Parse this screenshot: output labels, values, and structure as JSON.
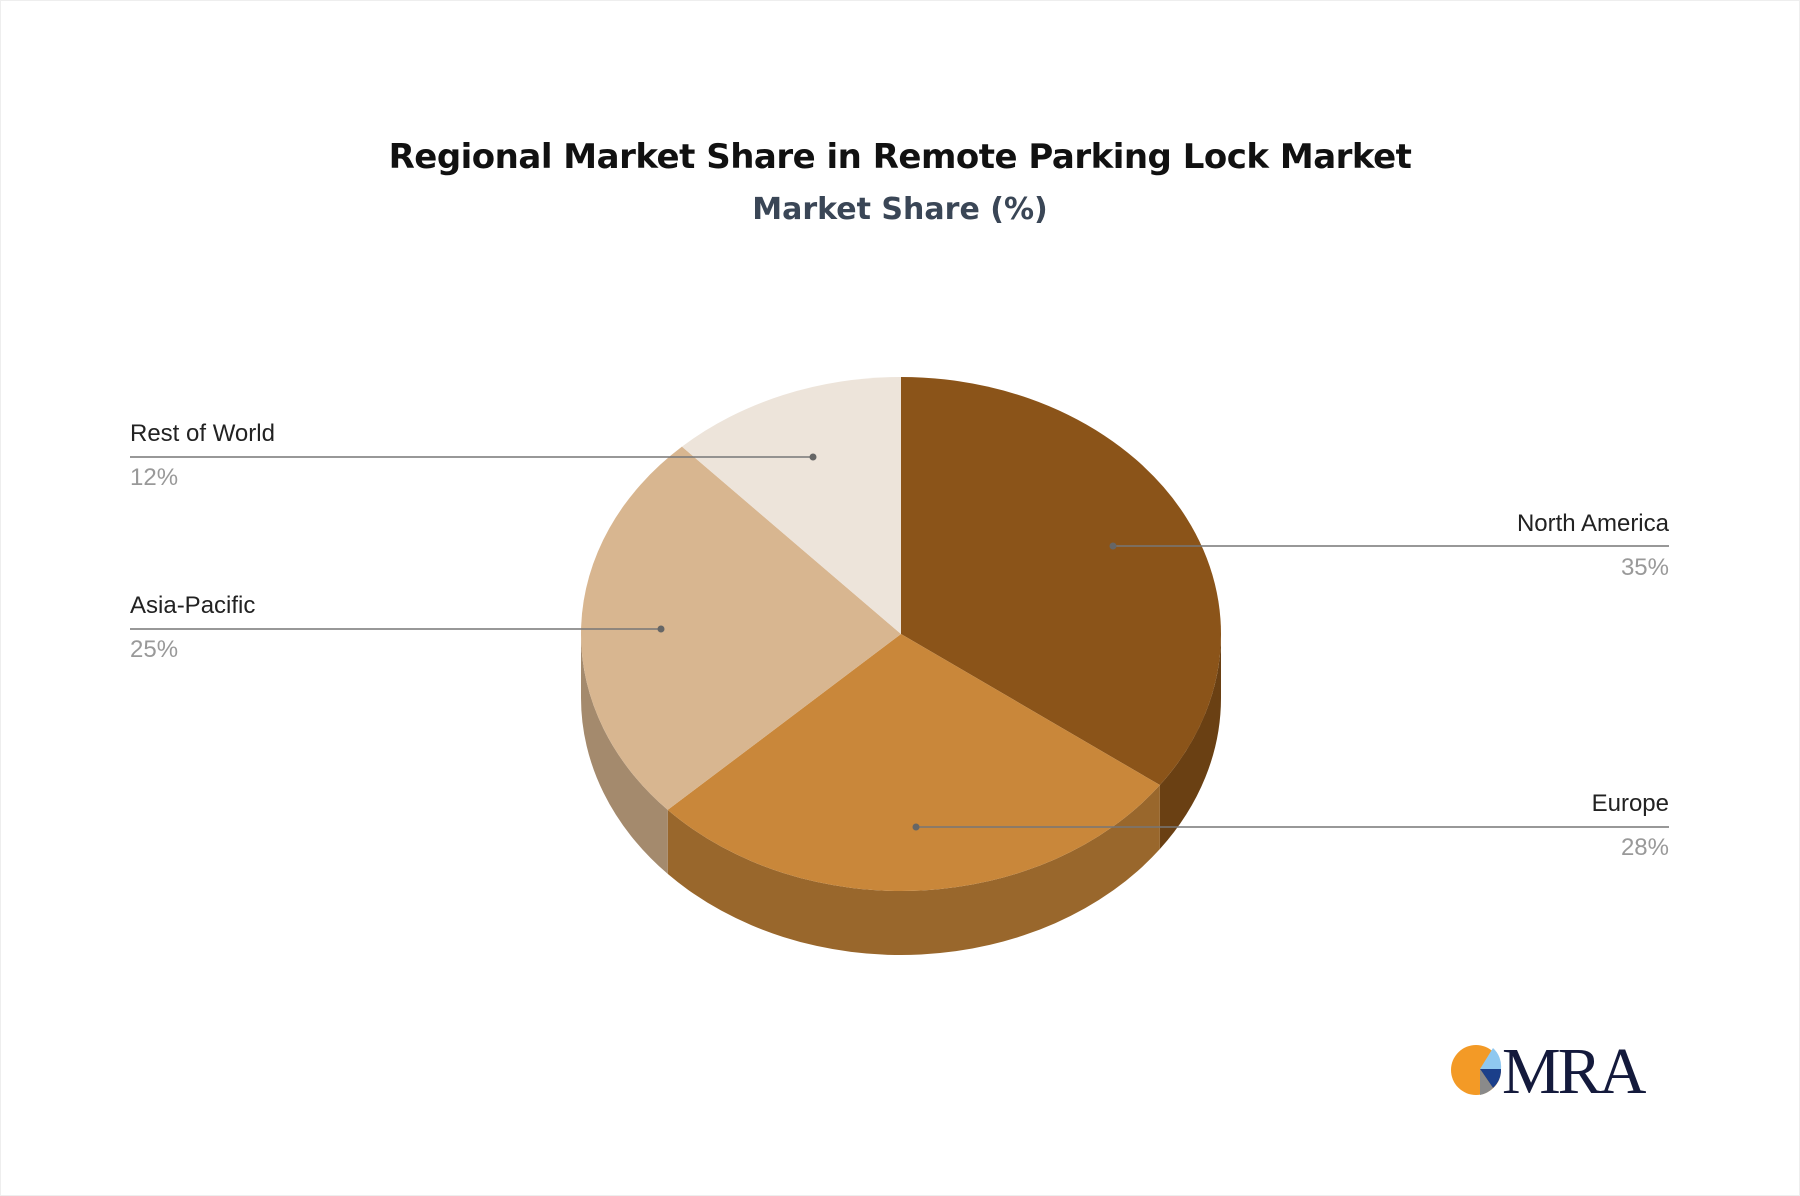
{
  "chart_data": {
    "type": "pie",
    "title": "Regional Market Share in Remote Parking Lock Market",
    "subtitle": "Market Share (%)",
    "slices": [
      {
        "label": "North America",
        "value": 35,
        "value_label": "35%",
        "color": "#8B5419"
      },
      {
        "label": "Europe",
        "value": 28,
        "value_label": "28%",
        "color": "#C9873A"
      },
      {
        "label": "Asia-Pacific",
        "value": 25,
        "value_label": "25%",
        "color": "#D8B690"
      },
      {
        "label": "Rest of World",
        "value": 12,
        "value_label": "12%",
        "color": "#EDE4DA"
      }
    ],
    "style": "3d-pie"
  },
  "logo": {
    "text": "MRA"
  }
}
